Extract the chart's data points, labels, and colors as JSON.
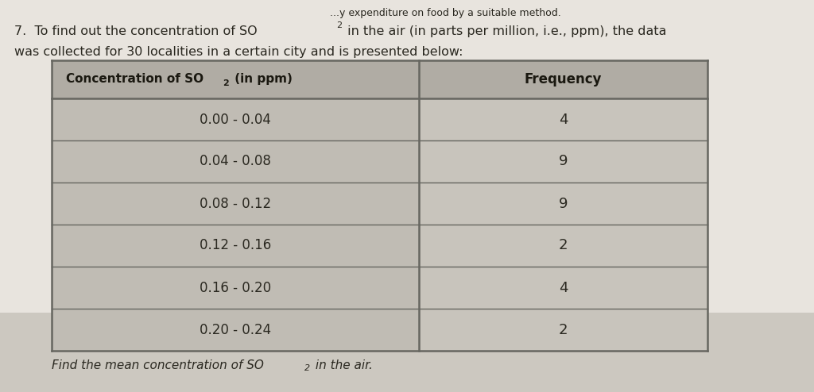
{
  "header_text1": "7.  To find out the concentration of SO",
  "header_sub1": "2",
  "header_text2": " in the air (in parts per million, i.e., ppm), the data",
  "header_text3": "was collected for 30 localities in a certain city and is presented below:",
  "top_crop_text": "...y expenditure on food by a suitable method.",
  "col1_header_text1": "Concentration of SO",
  "col1_header_sub": "2",
  "col1_header_text2": " (in ppm)",
  "col2_header": "Frequency",
  "rows": [
    [
      "0.00 - 0.04",
      "4"
    ],
    [
      "0.04 - 0.08",
      "9"
    ],
    [
      "0.08 - 0.12",
      "9"
    ],
    [
      "0.12 - 0.16",
      "2"
    ],
    [
      "0.16 - 0.20",
      "4"
    ],
    [
      "0.20 - 0.24",
      "2"
    ]
  ],
  "footer_text1": "Find the mean concentration of SO",
  "footer_sub": "2",
  "footer_text2": " in the air.",
  "page_bg_top": "#e8e4de",
  "page_bg_bottom": "#ccc8c0",
  "table_bg_left": "#c0bcb4",
  "table_bg_right": "#c8c4bc",
  "header_row_bg": "#b0aca4",
  "border_color": "#666660",
  "text_color": "#2a2820",
  "bold_text_color": "#1a1810"
}
